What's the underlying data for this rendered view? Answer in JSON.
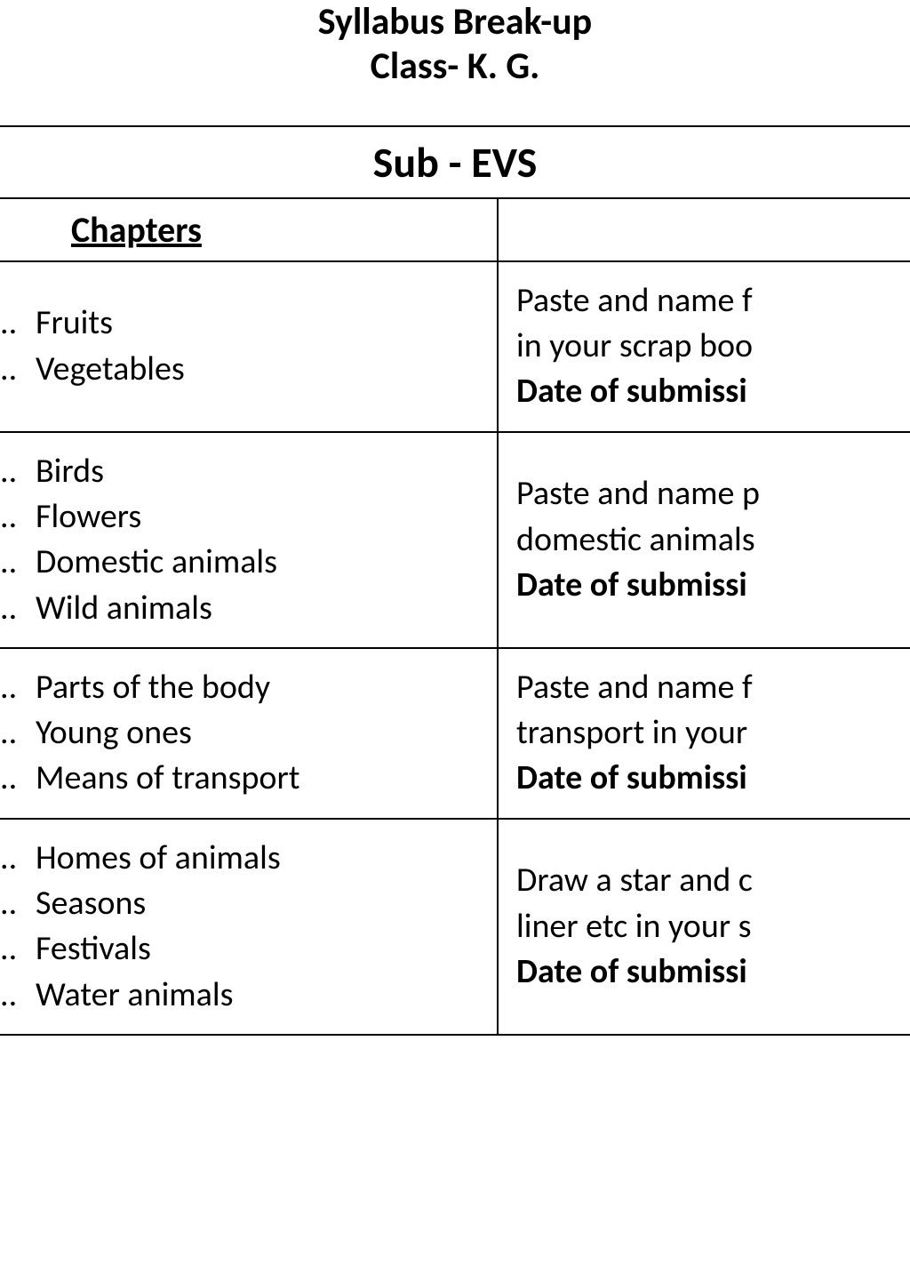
{
  "title": {
    "line1": "Syllabus Break-up",
    "line2": "Class- K. G."
  },
  "subject_label": "Sub - EVS",
  "headers": {
    "chapters": "Chapters"
  },
  "rows": [
    {
      "chapters": [
        {
          "marker": "..",
          "text": "Fruits"
        },
        {
          "marker": "..",
          "text": "Vegetables"
        }
      ],
      "activity": {
        "line1": "Paste and name f",
        "line2": "in your scrap boo",
        "line3": "Date of submissi"
      }
    },
    {
      "chapters": [
        {
          "marker": "..",
          "text": "Birds"
        },
        {
          "marker": "..",
          "text": "Flowers"
        },
        {
          "marker": "..",
          "text": "Domestic animals"
        },
        {
          "marker": "..",
          "text": "Wild animals"
        }
      ],
      "activity": {
        "line1": "Paste and name p",
        "line2": "domestic animals",
        "line3": "Date of submissi"
      }
    },
    {
      "chapters": [
        {
          "marker": "..",
          "text": "Parts of the body"
        },
        {
          "marker": "..",
          "text": "Young ones"
        },
        {
          "marker": "..",
          "text": "Means of transport"
        }
      ],
      "activity": {
        "line1": "Paste and name f",
        "line2": "transport in your",
        "line3": "Date of submissi"
      }
    },
    {
      "chapters": [
        {
          "marker": "..",
          "text": "Homes of animals"
        },
        {
          "marker": "..",
          "text": "Seasons"
        },
        {
          "marker": "..",
          "text": "Festivals"
        },
        {
          "marker": "..",
          "text": "Water animals"
        }
      ],
      "activity": {
        "line1": "Draw a star and c",
        "line2": "liner etc in your s",
        "line3": "Date of submissi"
      }
    }
  ],
  "markers": {
    "r0m0": "..",
    "r0m1": "..",
    "r1m0": "..",
    "r1m1": "..",
    "r1m2": "..",
    "r1m3": "..",
    "r2m0": "..",
    "r2m1": "..",
    "r2m2": "..",
    "r3m0": "..",
    "r3m1": "..",
    "r3m2": "..",
    "r3m3": ".."
  },
  "colors": {
    "text": "#000000",
    "border": "#000000",
    "background": "#ffffff"
  },
  "fonts": {
    "title_size": 42,
    "subject_size": 48,
    "header_size": 40,
    "body_size": 38
  }
}
